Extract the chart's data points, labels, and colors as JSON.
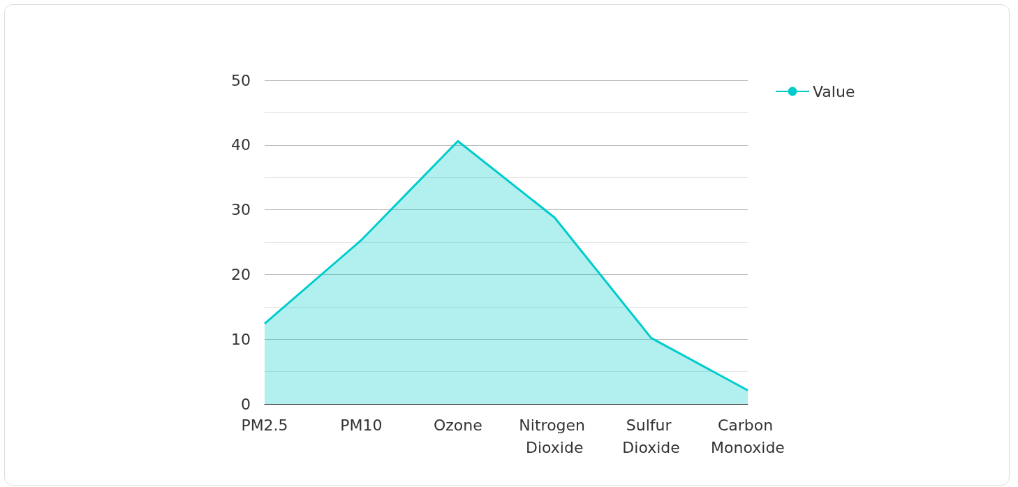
{
  "chart_data": {
    "type": "area",
    "categories": [
      "PM2.5",
      "PM10",
      "Ozone",
      "Nitrogen Dioxide",
      "Sulfur Dioxide",
      "Carbon Monoxide"
    ],
    "series": [
      {
        "name": "Value",
        "color": "#00cccc",
        "values": [
          12.4,
          25.3,
          40.6,
          28.8,
          10.2,
          2.1
        ]
      }
    ],
    "ylim": [
      0,
      50
    ],
    "yticks": [
      0,
      10,
      20,
      30,
      40,
      50
    ],
    "grid": "y",
    "legend": "top right",
    "marker": "none"
  }
}
